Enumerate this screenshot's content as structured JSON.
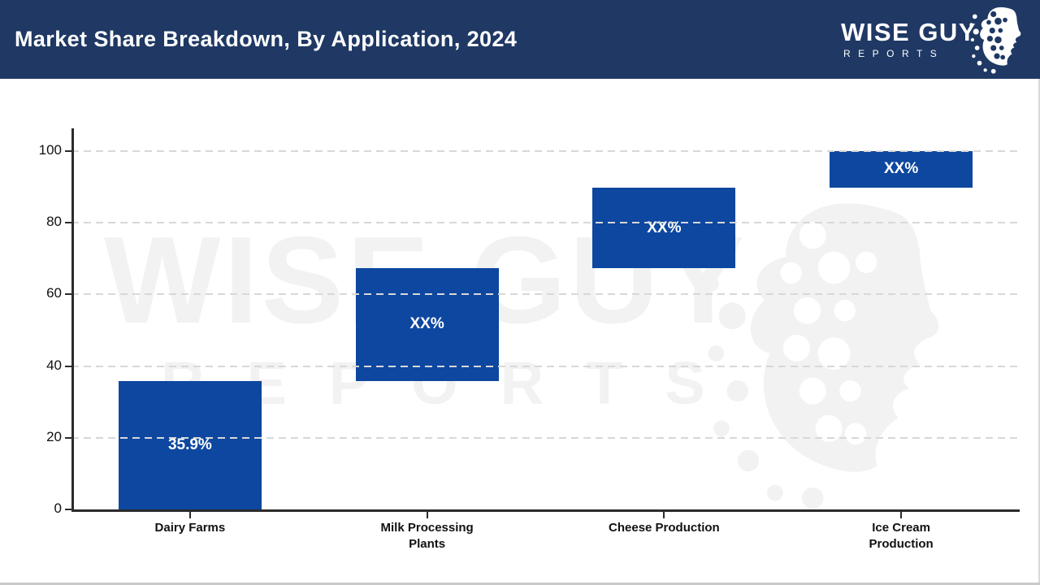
{
  "header": {
    "title": "Market Share Breakdown, By Application, 2024",
    "logo": {
      "line1": "WISE GUY",
      "line2": "REPORTS"
    }
  },
  "watermark": {
    "line1": "WISE GUY",
    "line2": "REPORTS"
  },
  "colors": {
    "header_bg": "#1f3864",
    "bar_blue": "#0d47a0",
    "axis": "#2b2b2b",
    "gridline": "#d8d8d8",
    "watermark": "#f2f2f2"
  },
  "chart_data": {
    "type": "bar",
    "subtype": "waterfall",
    "title": "Market Share Breakdown, By Application, 2024",
    "categories": [
      "Dairy Farms",
      "Milk Processing\nPlants",
      "Cheese Production",
      "Ice Cream\nProduction"
    ],
    "bars": [
      {
        "category": "Dairy Farms",
        "start": 0,
        "end": 35.9,
        "label": "35.9%"
      },
      {
        "category": "Milk Processing Plants",
        "start": 35.9,
        "end": 67.3,
        "label": "XX%"
      },
      {
        "category": "Cheese Production",
        "start": 67.3,
        "end": 89.8,
        "label": "XX%"
      },
      {
        "category": "Ice Cream Production",
        "start": 89.8,
        "end": 100,
        "label": "XX%"
      }
    ],
    "yticks": [
      0,
      20,
      40,
      60,
      80,
      100
    ],
    "ylim": [
      0,
      106
    ],
    "xlabel": "",
    "ylabel": "",
    "grid": "horizontal-dashed",
    "legend": "none",
    "bar_color": "#0d47a0",
    "label_color": "#ffffff"
  }
}
